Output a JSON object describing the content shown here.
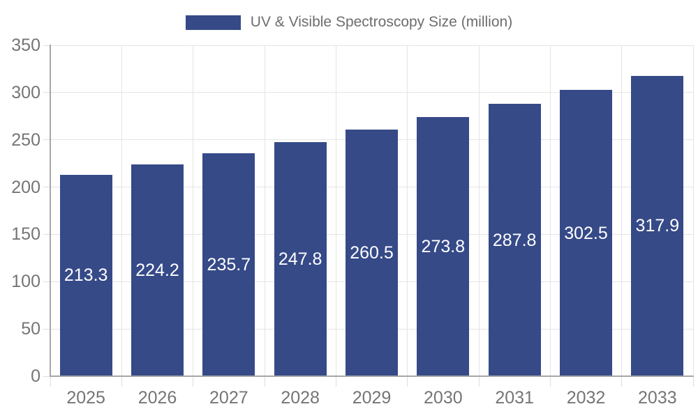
{
  "colors": {
    "bar": "#364a88",
    "bar_value_text": "#ffffff",
    "axis_label_text": "#757575",
    "legend_text": "#6d6d6d",
    "gridline": "#e4e4e4",
    "tick": "#dedede",
    "axis_line": "#a6a6a6"
  },
  "chart_data": {
    "type": "bar",
    "title": "",
    "categories": [
      "2025",
      "2026",
      "2027",
      "2028",
      "2029",
      "2030",
      "2031",
      "2032",
      "2033"
    ],
    "series": [
      {
        "name": "UV & Visible Spectroscopy Size (million)",
        "values": [
          213.3,
          224.2,
          235.7,
          247.8,
          260.5,
          273.8,
          287.8,
          302.5,
          317.9
        ]
      }
    ],
    "xlabel": "",
    "ylabel": "",
    "ylim": [
      0,
      350
    ],
    "yticks": [
      0,
      50,
      100,
      150,
      200,
      250,
      300,
      350
    ],
    "grid": true,
    "legend_position": "top",
    "value_labels": "inside-center"
  }
}
